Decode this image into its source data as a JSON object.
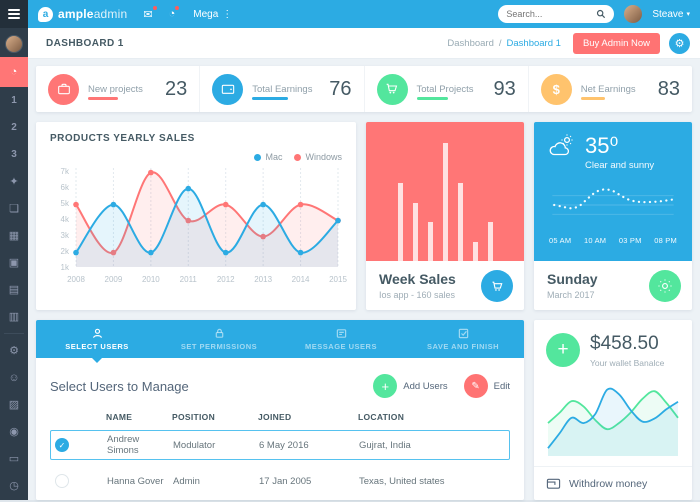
{
  "app": {
    "logo_bold": "ample",
    "logo_light": "admin",
    "logo_letter": "a",
    "mega_label": "Mega"
  },
  "header": {
    "search_placeholder": "Search...",
    "user_name": "Steave"
  },
  "page": {
    "title": "DASHBOARD 1",
    "breadcrumb": [
      "Dashboard",
      "Dashboard 1"
    ],
    "separator": "/",
    "buy_button": "Buy Admin Now"
  },
  "icons": {
    "envelope": "✉",
    "compass": "◔",
    "dots_vertical": "⋮",
    "caret_down": "▾",
    "gear": "⚙",
    "check": "✓",
    "plus": "+",
    "pencil": "✎"
  },
  "colors": {
    "primary": "#2cabe3",
    "danger": "#ff7676",
    "success": "#53e69d",
    "warning": "#ffc36d",
    "sidebar": "#2f3d4a",
    "text_dark": "#455a64",
    "text_muted": "#99abb4"
  },
  "sidebar": {
    "items": [
      {
        "name": "dashboard",
        "glyph": "◔",
        "active": true
      },
      {
        "name": "level-1",
        "text": "1"
      },
      {
        "name": "level-2",
        "text": "2"
      },
      {
        "name": "level-3",
        "text": "3"
      },
      {
        "name": "widgets",
        "glyph": "✦"
      },
      {
        "name": "pages",
        "glyph": "❏"
      },
      {
        "name": "grid",
        "glyph": "▦"
      },
      {
        "name": "forms",
        "glyph": "▣"
      },
      {
        "name": "tables",
        "glyph": "▤"
      },
      {
        "name": "charts",
        "glyph": "▥"
      },
      {
        "divider": true
      },
      {
        "name": "settings",
        "glyph": "⚙"
      },
      {
        "name": "emoji",
        "glyph": "☺"
      },
      {
        "name": "gallery",
        "glyph": "▨"
      },
      {
        "name": "location",
        "glyph": "◉"
      },
      {
        "name": "calendar",
        "glyph": "▭"
      },
      {
        "name": "clock",
        "glyph": "◷"
      }
    ]
  },
  "stats": [
    {
      "label": "New projects",
      "value": "23",
      "color": "#ff7676",
      "bar_pct": 55,
      "icon": "briefcase"
    },
    {
      "label": "Total Earnings",
      "value": "76",
      "color": "#2cabe3",
      "bar_pct": 60,
      "icon": "wallet"
    },
    {
      "label": "Total Projects",
      "value": "93",
      "color": "#53e69d",
      "bar_pct": 55,
      "icon": "cart"
    },
    {
      "label": "Net Earnings",
      "value": "83",
      "color": "#ffc36d",
      "bar_pct": 45,
      "icon": "dollar"
    }
  ],
  "weather": {
    "temp": "35⁰",
    "condition": "Clear and sunny",
    "day": "Sunday",
    "month": "March 2017"
  },
  "tabs": {
    "active_index": 0,
    "items": [
      {
        "label": "SELECT USERS",
        "icon": "user"
      },
      {
        "label": "SET PERMISSIONS",
        "icon": "lock"
      },
      {
        "label": "MESSAGE USERS",
        "icon": "message"
      },
      {
        "label": "SAVE AND FINISH",
        "icon": "check-square"
      }
    ]
  },
  "users": {
    "heading": "Select Users to Manage",
    "add_button": "Add Users",
    "edit_button": "Edit",
    "columns": [
      "NAME",
      "POSITION",
      "JOINED",
      "LOCATION"
    ],
    "rows": [
      {
        "name": "Andrew Simons",
        "position": "Modulator",
        "joined": "6 May 2016",
        "location": "Gujrat, India",
        "selected": true
      },
      {
        "name": "Hanna Gover",
        "position": "Admin",
        "joined": "17 Jan 2005",
        "location": "Texas, United states",
        "selected": false
      }
    ]
  },
  "wallet": {
    "amount": "$458.50",
    "label": "Your wallet Banalce",
    "action": "Withdrow money"
  },
  "chart_data": [
    {
      "id": "products-yearly-sales",
      "type": "line",
      "title": "PRODUCTS YEARLY SALES",
      "categories": [
        "2008",
        "2009",
        "2010",
        "2011",
        "2012",
        "2013",
        "2014",
        "2015"
      ],
      "series": [
        {
          "name": "Mac",
          "color": "#2cabe3",
          "values": [
            1.9,
            4.9,
            1.9,
            5.9,
            1.9,
            4.9,
            1.9,
            3.9
          ]
        },
        {
          "name": "Windows",
          "color": "#ff7676",
          "values": [
            4.9,
            1.9,
            6.9,
            3.9,
            4.9,
            2.9,
            4.9,
            3.9
          ]
        }
      ],
      "ylim": [
        1,
        7
      ],
      "ytick_labels": [
        "1k",
        "2k",
        "3k",
        "4k",
        "5k",
        "6k",
        "7k"
      ],
      "legend_position": "top-right",
      "grid": "vertical-dashed"
    },
    {
      "id": "week-sales",
      "type": "bar",
      "title": "Week Sales",
      "subtitle": "Ios app - 160 sales",
      "values": [
        56,
        42,
        28,
        85,
        56,
        14,
        28
      ],
      "ylim": [
        0,
        100
      ],
      "bar_color": "rgba(255,255,255,0.78)"
    },
    {
      "id": "weather-trend",
      "type": "line",
      "style": "dotted-white",
      "x_labels": [
        "05 AM",
        "10 AM",
        "03 PM",
        "08 PM"
      ],
      "values": [
        50,
        46,
        42,
        48,
        66,
        82,
        88,
        84,
        72,
        62,
        58,
        57,
        58,
        60,
        63
      ],
      "ylim": [
        0,
        100
      ]
    },
    {
      "id": "wallet-balance",
      "type": "area",
      "series": [
        {
          "name": "income",
          "color": "#53e69d",
          "values": [
            38,
            52,
            67,
            60,
            42,
            30,
            38,
            52,
            70,
            80,
            65,
            45
          ]
        },
        {
          "name": "balance",
          "color": "#2cabe3",
          "values": [
            5,
            25,
            45,
            38,
            50,
            82,
            76,
            55,
            40,
            44,
            56,
            66
          ]
        }
      ],
      "ylim": [
        0,
        100
      ]
    }
  ]
}
